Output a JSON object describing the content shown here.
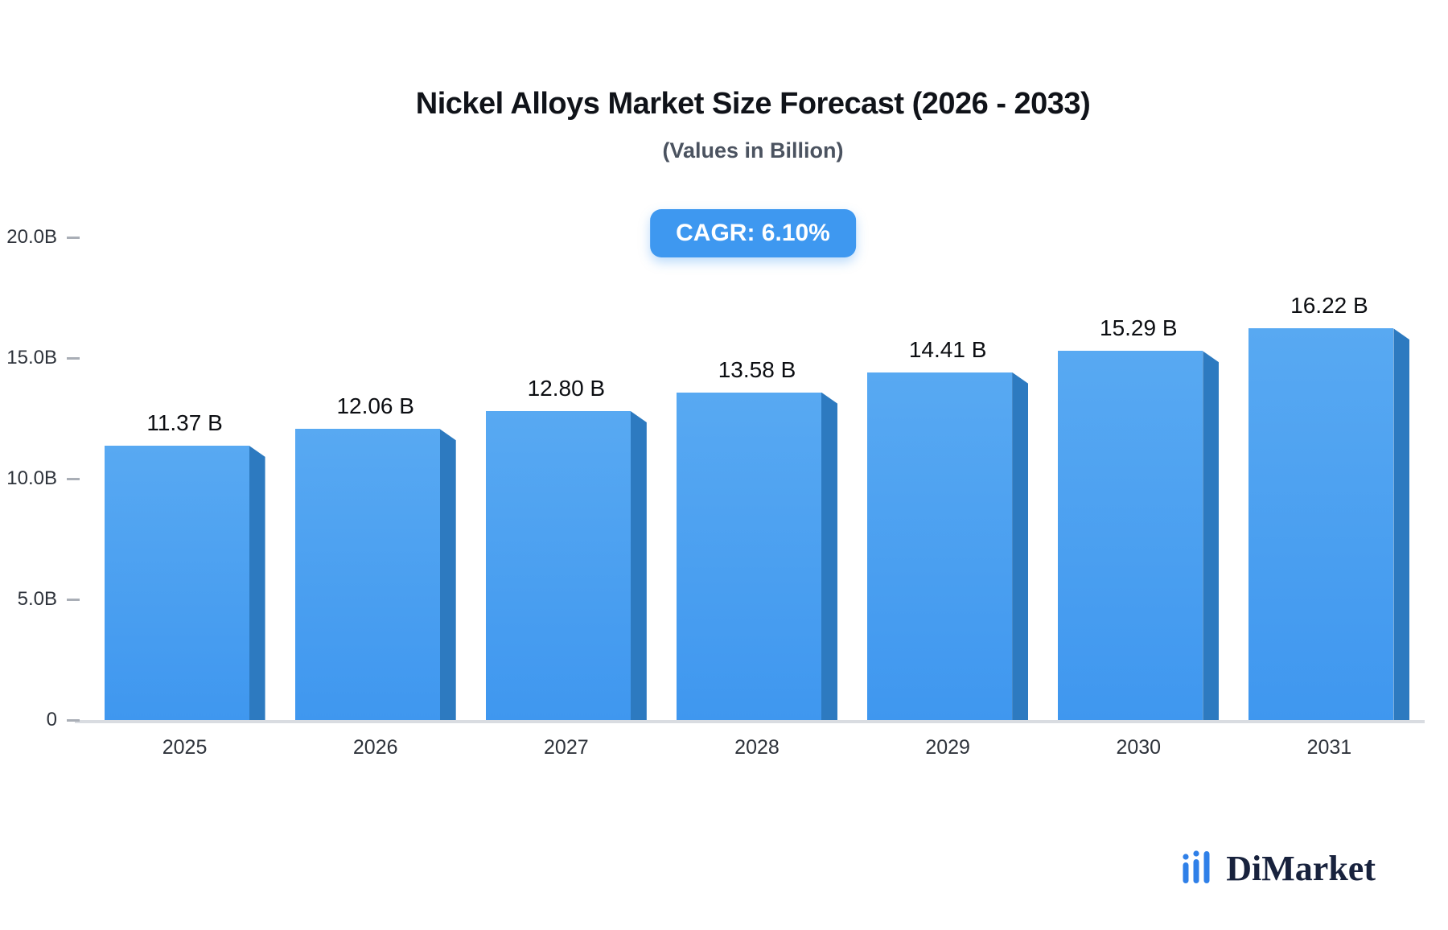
{
  "header": {
    "title": "Nickel Alloys Market Size Forecast (2026 - 2033)",
    "subtitle": "(Values in Billion)"
  },
  "badge": {
    "label": "CAGR: 6.10%",
    "bg": "#3e98f0"
  },
  "chart_data": {
    "type": "bar",
    "title": "Nickel Alloys Market Size Forecast (2026 - 2033)",
    "subtitle": "(Values in Billion)",
    "categories": [
      "2025",
      "2026",
      "2027",
      "2028",
      "2029",
      "2030",
      "2031"
    ],
    "values": [
      11.37,
      12.06,
      12.8,
      13.58,
      14.41,
      15.29,
      16.22
    ],
    "value_labels": [
      "11.37 B",
      "12.06 B",
      "12.80 B",
      "13.58 B",
      "14.41 B",
      "15.29 B",
      "16.22 B"
    ],
    "xlabel": "",
    "ylabel": "",
    "ylim": [
      0,
      20
    ],
    "yticks": [
      {
        "value": 20,
        "label": "20.0B"
      },
      {
        "value": 15,
        "label": "15.0B"
      },
      {
        "value": 10,
        "label": "10.0B"
      },
      {
        "value": 5,
        "label": "5.0B"
      },
      {
        "value": 0,
        "label": "0"
      }
    ],
    "grid": false,
    "legend": false,
    "bar_color_top": "#58a9f2",
    "bar_color_bottom": "#3f97ef",
    "bar_side_color": "#2d7ac0"
  },
  "logo": {
    "text": "DiMarket",
    "icon": "mini-bar-chart-icon",
    "color": "#18223d",
    "accent": "#2f80e8"
  }
}
